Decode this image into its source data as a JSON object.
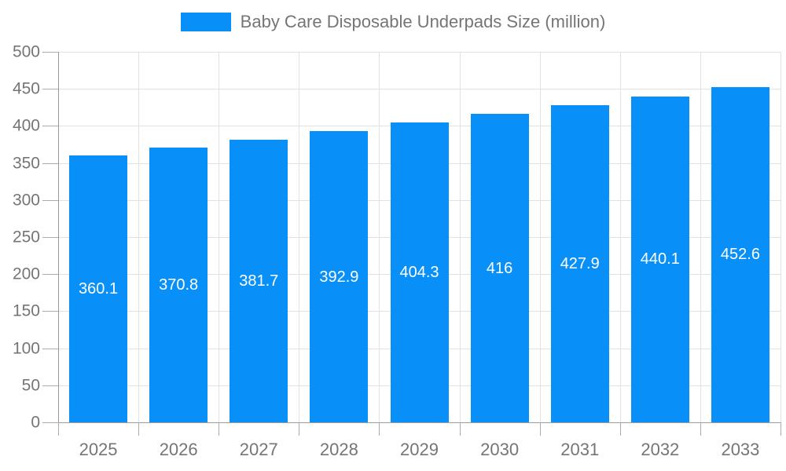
{
  "chart_data": {
    "type": "bar",
    "title": "Baby Care Disposable Underpads Size (million)",
    "categories": [
      "2025",
      "2026",
      "2027",
      "2028",
      "2029",
      "2030",
      "2031",
      "2032",
      "2033"
    ],
    "values": [
      360.1,
      370.8,
      381.7,
      392.9,
      404.3,
      416,
      427.9,
      440.1,
      452.6
    ],
    "series_name": "Baby Care Disposable Underpads Size (million)",
    "xlabel": "",
    "ylabel": "",
    "ylim": [
      0,
      500
    ],
    "ytick_step": 50,
    "grid": true,
    "legend_position": "top",
    "colors": {
      "bar": "#0890F8",
      "value_label": "#ffffff",
      "axis_text": "#757575",
      "grid_line": "#e2e2e2",
      "axis_line": "#999999",
      "background": "#ffffff"
    }
  }
}
